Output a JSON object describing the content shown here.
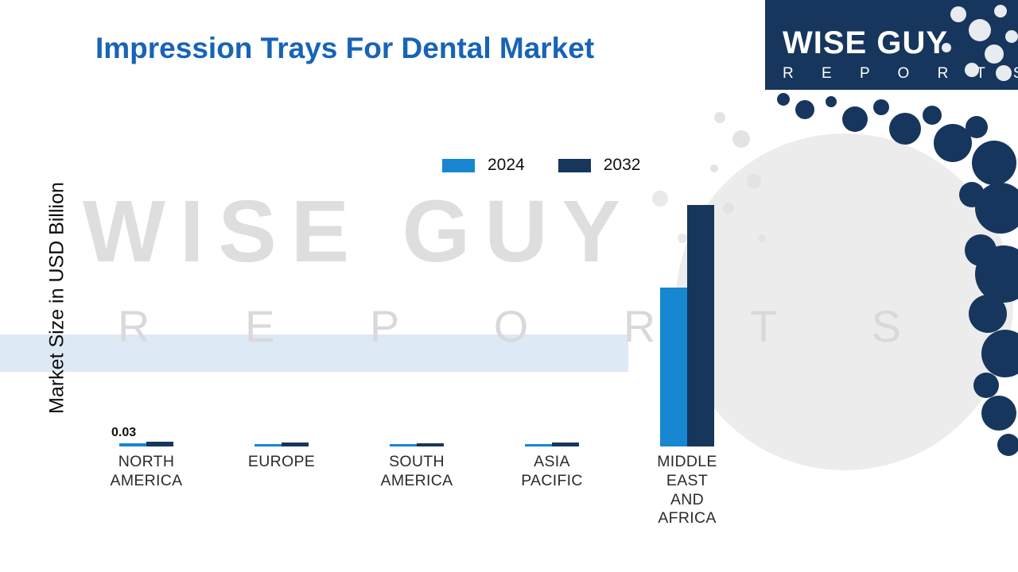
{
  "header": {
    "title": "Impression Trays For Dental Market"
  },
  "logo": {
    "line1": "WISE GUY",
    "line2": "R E P O R T S"
  },
  "watermark": {
    "line1": "WISE GUY",
    "line2": "REPORTS"
  },
  "colors": {
    "title_blue": "#1763b8",
    "navy": "#17365d",
    "bar_2024": "#1787d1",
    "bar_2032": "#16365c",
    "watermark_gray": "#dedede",
    "band_blue": "#d7e5f3"
  },
  "chart_data": {
    "type": "bar",
    "title": "Impression Trays For Dental Market",
    "xlabel": "",
    "ylabel": "Market Size in USD Billion",
    "units": "USD Billion",
    "grid": false,
    "legend_position": "top",
    "ylim": [
      0,
      2.4
    ],
    "categories": [
      [
        "NORTH",
        "AMERICA"
      ],
      [
        "EUROPE"
      ],
      [
        "SOUTH",
        "AMERICA"
      ],
      [
        "ASIA",
        "PACIFIC"
      ],
      [
        "MIDDLE",
        "EAST",
        "AND",
        "AFRICA"
      ]
    ],
    "series": [
      {
        "name": "2024",
        "color": "#1787d1",
        "values": [
          0.03,
          0.02,
          0.02,
          0.02,
          1.55
        ]
      },
      {
        "name": "2032",
        "color": "#16365c",
        "values": [
          0.05,
          0.04,
          0.03,
          0.04,
          2.35
        ]
      }
    ],
    "annotation": {
      "text": "0.03",
      "category_index": 0,
      "series_index": 0
    }
  }
}
